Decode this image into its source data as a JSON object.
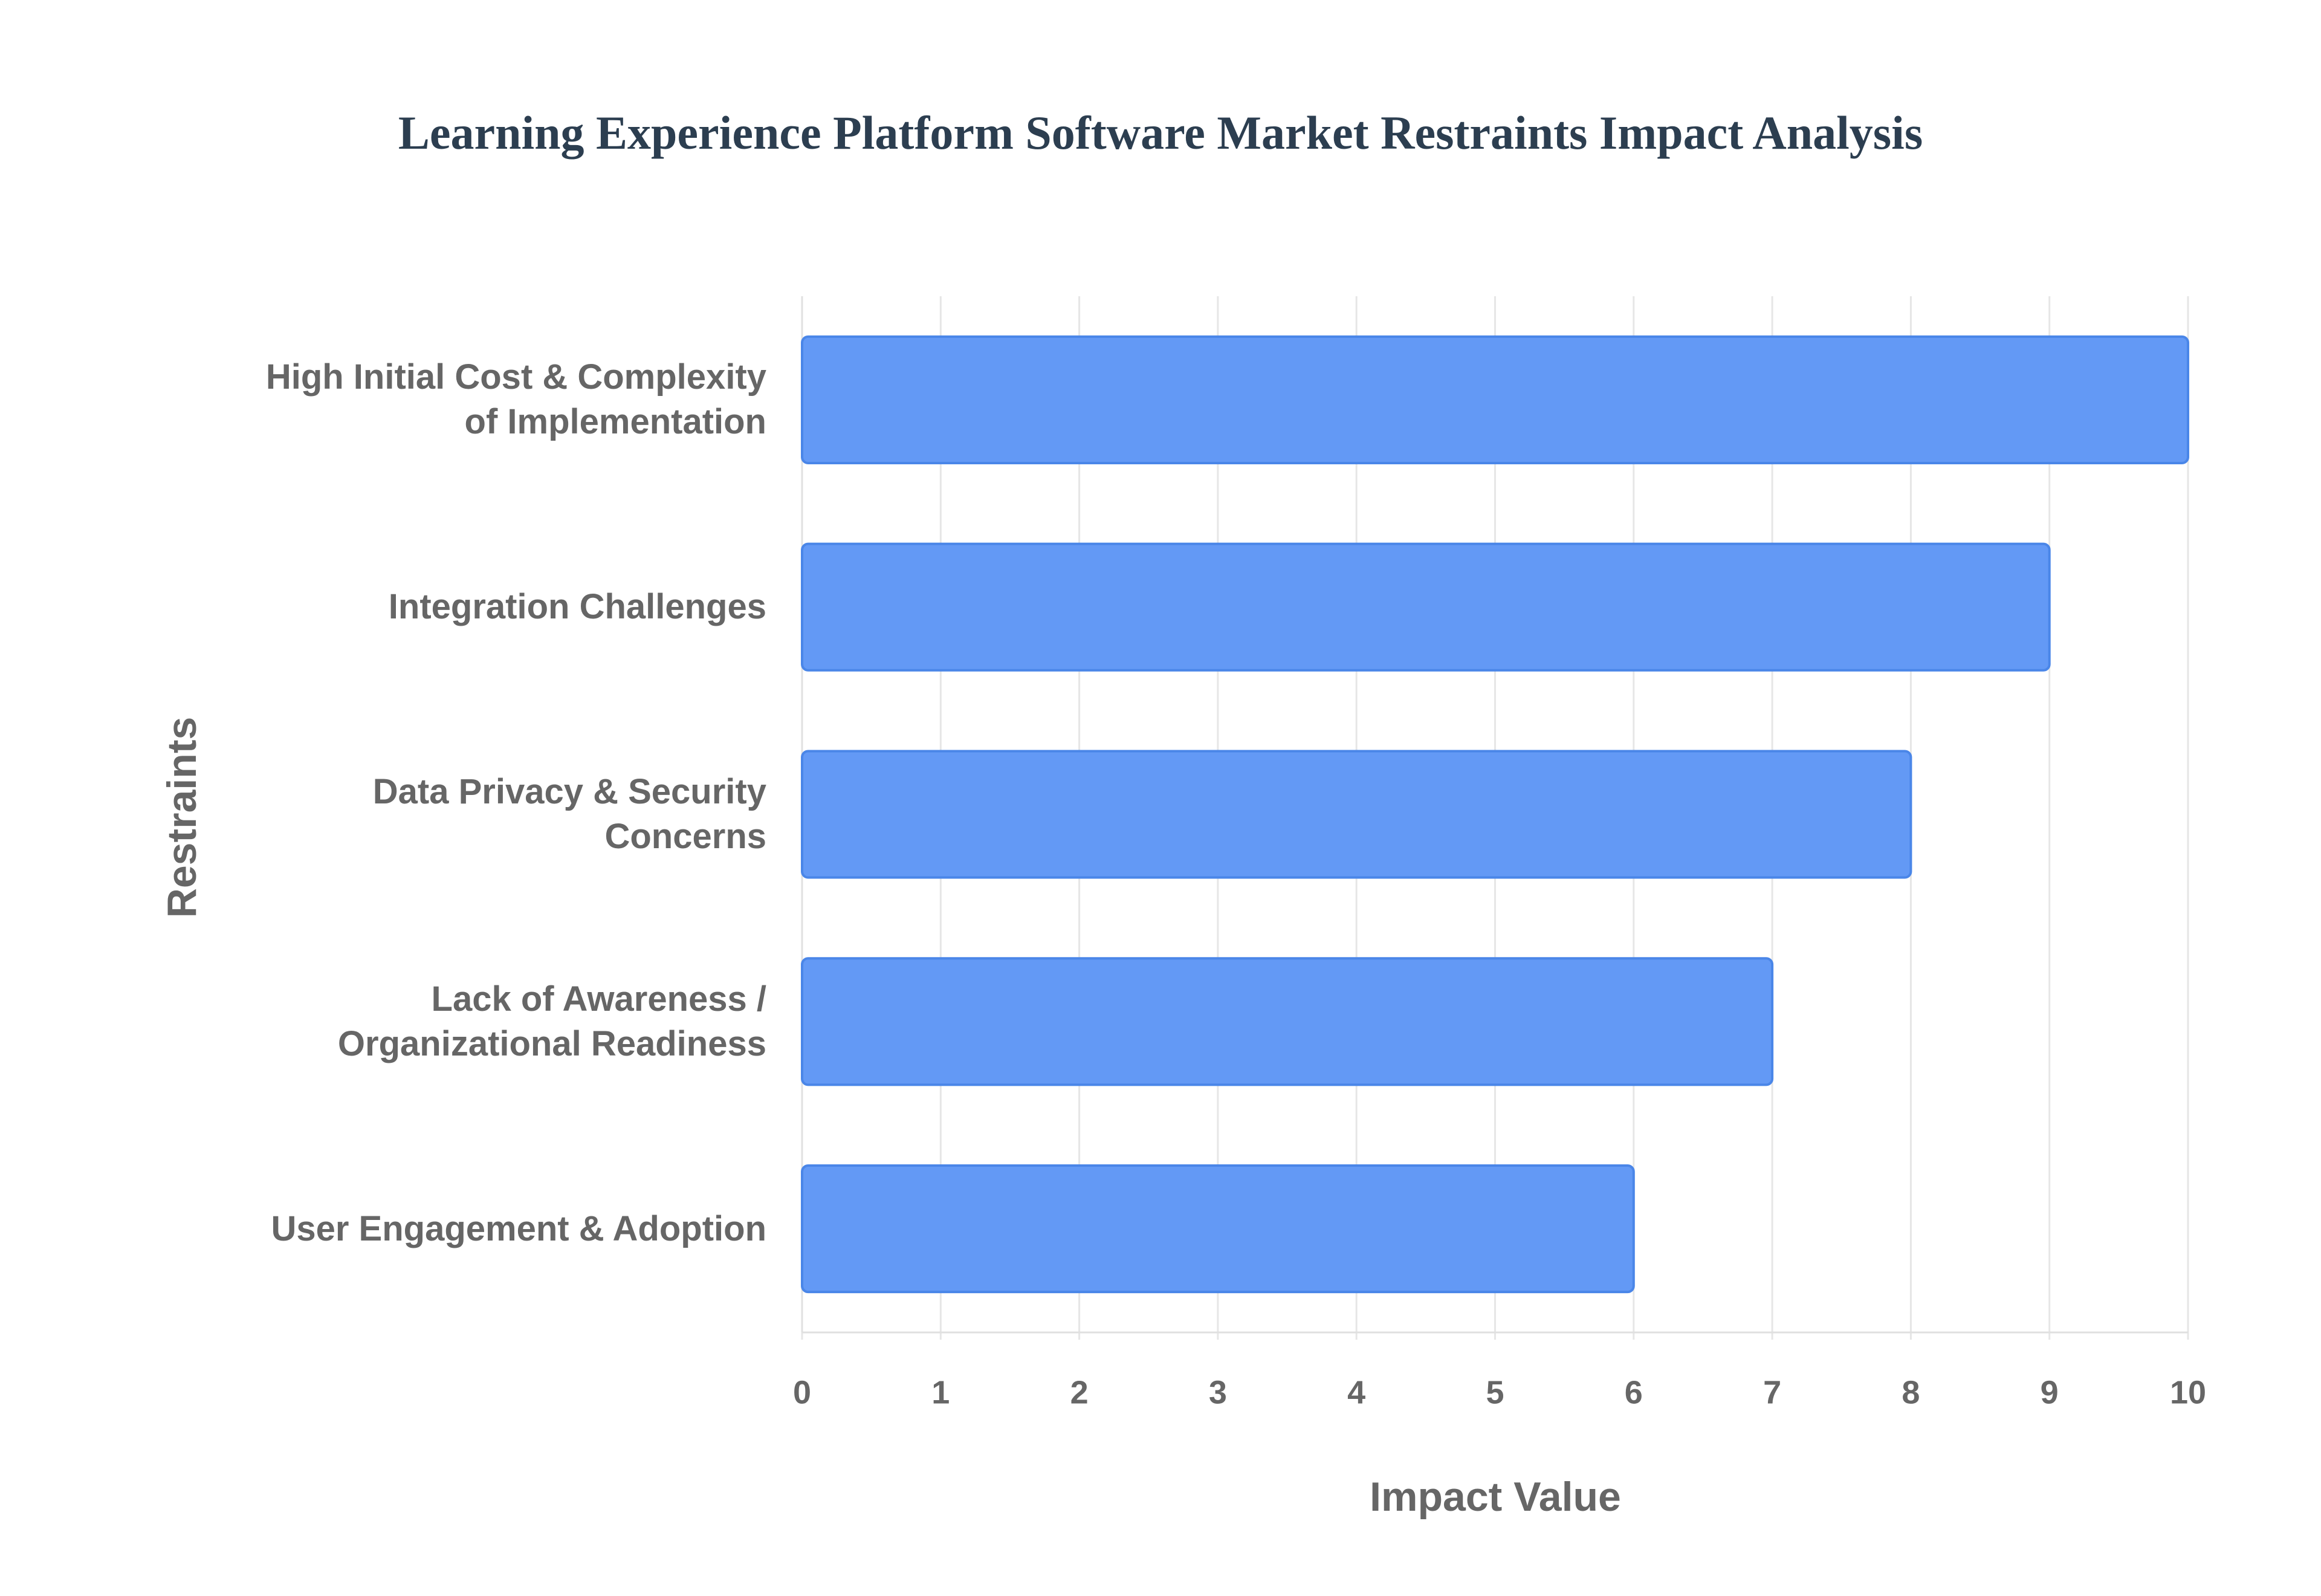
{
  "chart_data": {
    "type": "bar",
    "orientation": "horizontal",
    "title": "Learning Experience Platform Software Market Restraints Impact Analysis",
    "x_label": "Impact Value",
    "y_label": "Restraints",
    "categories": [
      "High Initial Cost & Complexity of Implementation",
      "Integration Challenges",
      "Data Privacy & Security Concerns",
      "Lack of Awareness / Organizational Readiness",
      "User Engagement & Adoption"
    ],
    "values": [
      10,
      9,
      8,
      7,
      6
    ],
    "color": "#6399f5",
    "edge_color": "#4a86e8",
    "xlim": [
      0,
      10
    ],
    "xticks": [
      0,
      1,
      2,
      3,
      4,
      5,
      6,
      7,
      8,
      9,
      10
    ],
    "grid": true
  }
}
